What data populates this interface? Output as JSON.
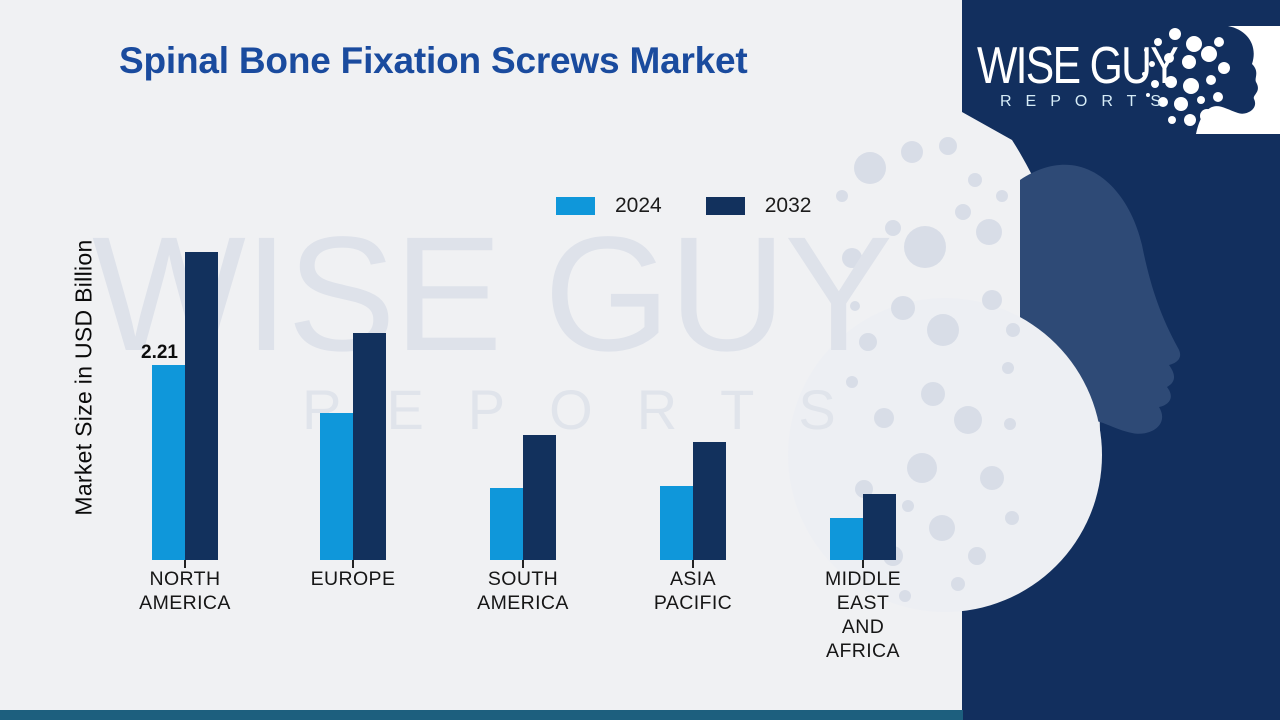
{
  "colors": {
    "background": "#f0f1f3",
    "title": "#1a4b9e",
    "series_2024": "#0f97da",
    "series_2032": "#12315d",
    "brand_navy": "#122f5e",
    "face_blue": "#2e4a76",
    "footer_teal": "#1d5f7e"
  },
  "header": {
    "title": "Spinal Bone Fixation Screws Market"
  },
  "logo": {
    "name": "WISE GUY",
    "tagline": "REPORTS"
  },
  "watermark": {
    "name": "WISE GUY",
    "tagline": "REPORTS"
  },
  "chart_data": {
    "type": "bar",
    "title": "Spinal Bone Fixation Screws Market",
    "xlabel": "",
    "ylabel": "Market Size in USD Billion",
    "units": "USD Billion",
    "categories": [
      "NORTH AMERICA",
      "EUROPE",
      "SOUTH AMERICA",
      "ASIA PACIFIC",
      "MIDDLE EAST AND AFRICA"
    ],
    "tick_labels": [
      "NORTH\nAMERICA",
      "EUROPE",
      "SOUTH\nAMERICA",
      "ASIA\nPACIFIC",
      "MIDDLE\nEAST\nAND\nAFRICA"
    ],
    "series": [
      {
        "name": "2024",
        "color": "#0f97da",
        "values": [
          2.21,
          1.67,
          0.82,
          0.84,
          0.48
        ]
      },
      {
        "name": "2032",
        "color": "#12315d",
        "values": [
          3.49,
          2.57,
          1.42,
          1.34,
          0.75
        ]
      }
    ],
    "value_labels": [
      {
        "series": "2024",
        "category": "NORTH AMERICA",
        "text": "2.21"
      }
    ],
    "legend": {
      "position": "top",
      "entries": [
        "2024",
        "2032"
      ]
    },
    "grid": false,
    "ylim": [
      0,
      3.6
    ]
  }
}
